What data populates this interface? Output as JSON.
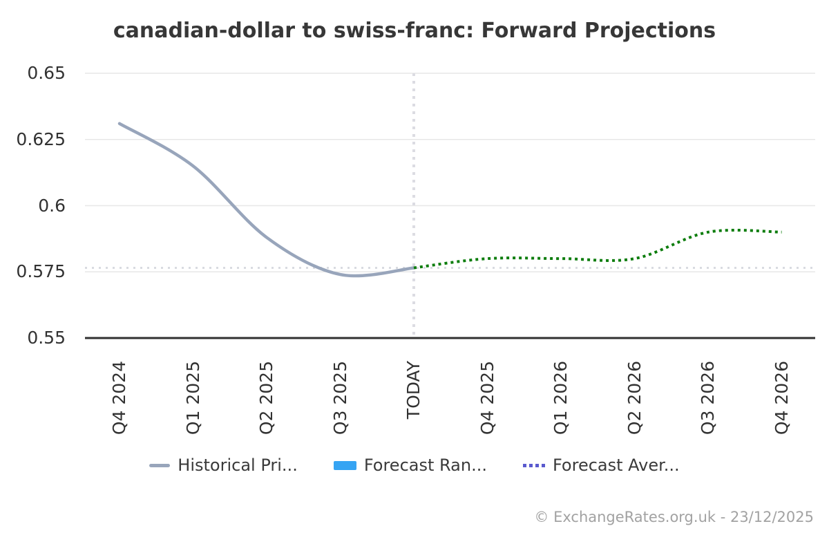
{
  "title": "canadian-dollar to swiss-franc: Forward Projections",
  "footer": "© ExchangeRates.org.uk - 23/12/2025",
  "legend": [
    {
      "label": "Historical Pri...",
      "swatch": "line",
      "color": "#98a5bb"
    },
    {
      "label": "Forecast Ran...",
      "swatch": "rect",
      "color": "#36a4f3"
    },
    {
      "label": "Forecast Aver...",
      "swatch": "dots",
      "color": "#5a5ace"
    }
  ],
  "chart_data": {
    "type": "line",
    "title": "canadian-dollar to swiss-franc: Forward Projections",
    "categories": [
      "Q4 2024",
      "Q1 2025",
      "Q2 2025",
      "Q3 2025",
      "TODAY",
      "Q4 2025",
      "Q1 2026",
      "Q2 2026",
      "Q3 2026",
      "Q4 2026"
    ],
    "ylim": [
      0.55,
      0.65
    ],
    "y_ticks": [
      0.55,
      0.575,
      0.6,
      0.625,
      0.65
    ],
    "grid": "horizontal-only",
    "legend_position": "bottom",
    "today_category_index": 4,
    "current_rate_line": 0.5765,
    "series": [
      {
        "name": "Historical Price",
        "color": "#98a5bb",
        "line_style": "solid",
        "category_indices": [
          0,
          1,
          2,
          3,
          4
        ],
        "values": [
          0.631,
          0.615,
          0.588,
          0.574,
          0.5765
        ]
      },
      {
        "name": "Forecast Average",
        "color": "#0d7d0d",
        "line_style": "dotted",
        "category_indices": [
          4,
          5,
          6,
          7,
          8,
          9
        ],
        "values": [
          0.5765,
          0.58,
          0.58,
          0.58,
          0.59,
          0.59
        ]
      }
    ]
  },
  "colors": {
    "gridline": "#e7e7e7",
    "axis_line": "#303030",
    "dotted_reference": "#d9dbe0",
    "today_line": "#dcdce2",
    "axis_label": "#323232",
    "title": "#373737",
    "footer": "#a2a2a2"
  }
}
